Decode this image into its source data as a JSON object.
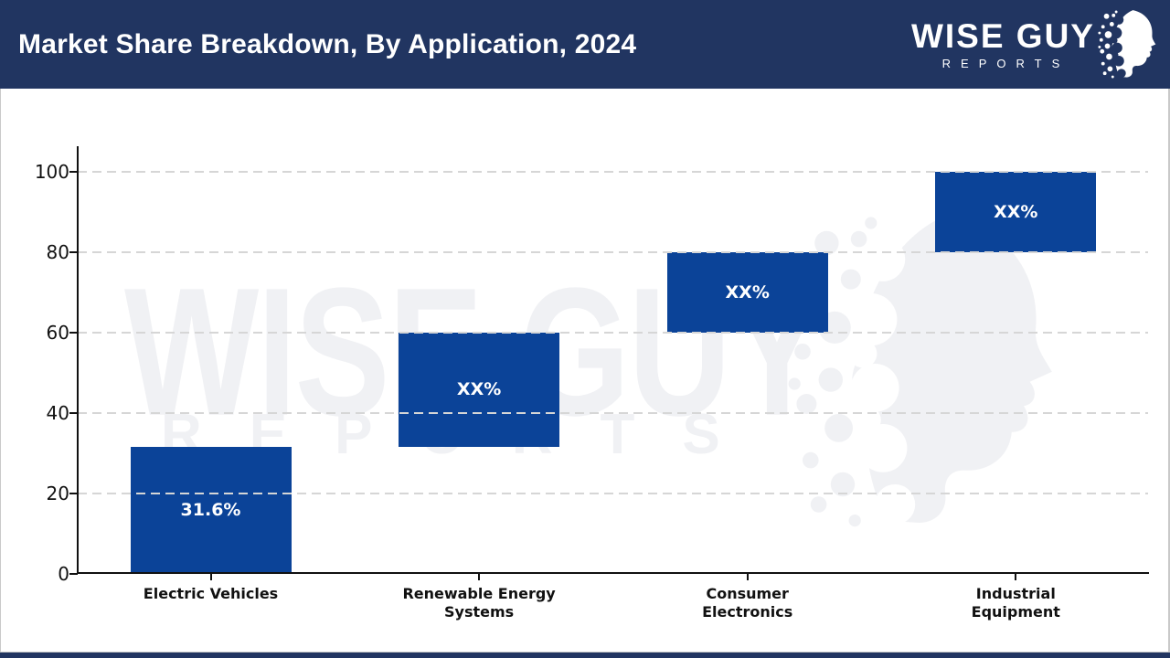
{
  "header": {
    "title": "Market Share Breakdown, By Application, 2024",
    "logo": {
      "line1": "WISE GUY",
      "line2": "REPORTS"
    }
  },
  "watermark": {
    "line1": "WISE GUY",
    "line2": "REPORTS"
  },
  "icons": {
    "logo_head": "head-profile-made-of-dots"
  },
  "colors": {
    "header_bg": "#213561",
    "bar": "#0b4398",
    "gridline": "#d6d6d6",
    "axis": "#111111",
    "watermark": "#f0f1f4",
    "footer_bg": "#213561",
    "bar_label": "#ffffff",
    "title_text": "#ffffff"
  },
  "chart_data": {
    "type": "bar",
    "subtype": "waterfall-stacked-percentage",
    "title": "Market Share Breakdown, By Application, 2024",
    "categories": [
      "Electric Vehicles",
      "Renewable Energy\nSystems",
      "Consumer\nElectronics",
      "Industrial\nEquipment"
    ],
    "segments": [
      {
        "category": "Electric Vehicles",
        "label": "31.6%",
        "start": 0,
        "end": 31.6
      },
      {
        "category": "Renewable Energy Systems",
        "label": "XX%",
        "start": 31.6,
        "end": 60
      },
      {
        "category": "Consumer Electronics",
        "label": "XX%",
        "start": 60,
        "end": 80
      },
      {
        "category": "Industrial Equipment",
        "label": "XX%",
        "start": 80,
        "end": 100
      }
    ],
    "xlabel": "",
    "ylabel": "",
    "ylim": [
      0,
      100
    ],
    "yticks": [
      0,
      20,
      40,
      60,
      80,
      100
    ],
    "grid": "horizontal dashed, drawn above bars",
    "legend": "none",
    "bar_color": "#0b4398",
    "value_label_color": "#ffffff"
  }
}
